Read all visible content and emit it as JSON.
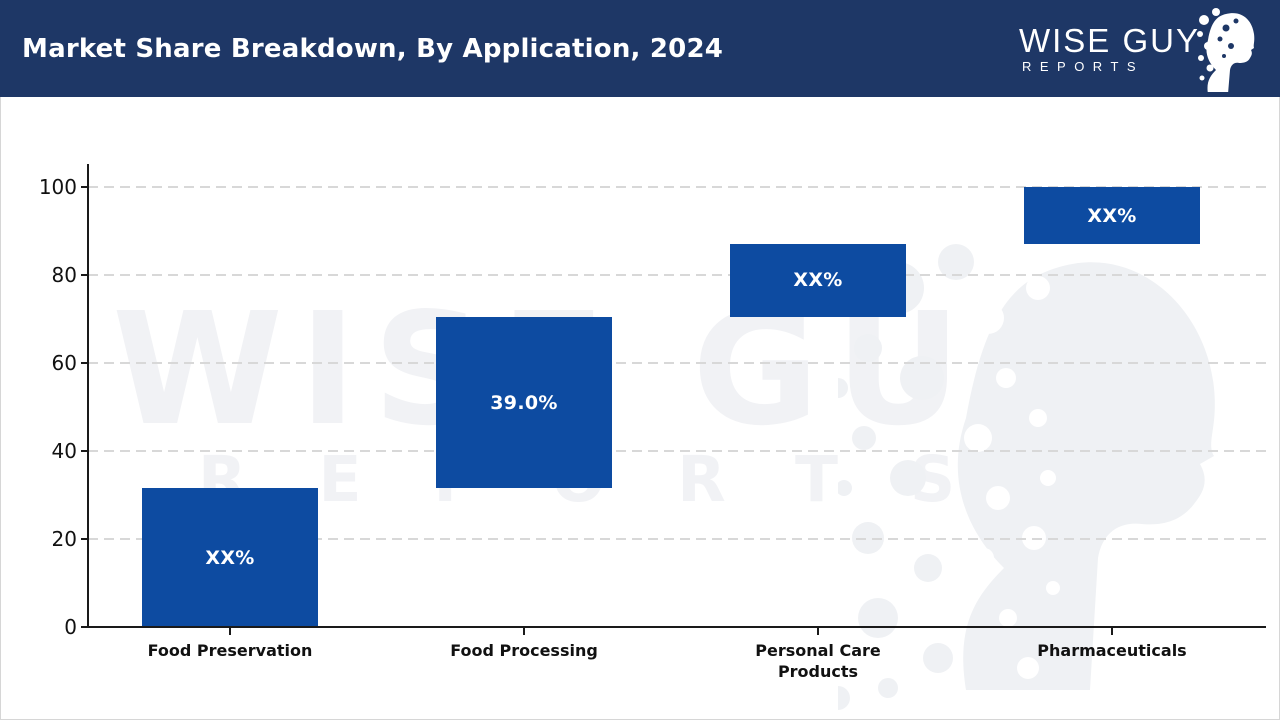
{
  "header": {
    "title": "Market Share Breakdown, By Application, 2024",
    "logo": {
      "line1": "WISE GUY",
      "line2": "REPORTS"
    }
  },
  "watermark": {
    "line1": "WISE GUY",
    "line2": "REPORTS"
  },
  "colors": {
    "header_bg": "#1e3766",
    "bar": "#0d4ba1",
    "grid": "#d8d8d8",
    "axis": "#1a1a1a",
    "bar_label_text": "#ffffff",
    "watermark": "#f1f2f5"
  },
  "chart_data": {
    "type": "bar",
    "subtype": "waterfall-floating-bars",
    "title": "Market Share Breakdown, By Application, 2024",
    "categories": [
      "Food Preservation",
      "Food Processing",
      "Personal Care Products",
      "Pharmaceuticals"
    ],
    "segments": [
      {
        "category": "Food Preservation",
        "start": 0,
        "end": 31.5,
        "label": "XX%"
      },
      {
        "category": "Food Processing",
        "start": 31.5,
        "end": 70.5,
        "label": "39.0%"
      },
      {
        "category": "Personal Care Products",
        "start": 70.5,
        "end": 87,
        "label": "XX%"
      },
      {
        "category": "Pharmaceuticals",
        "start": 87,
        "end": 100,
        "label": "XX%"
      }
    ],
    "xlabel": "",
    "ylabel": "",
    "ylim": [
      0,
      100
    ],
    "yticks": [
      0,
      20,
      40,
      60,
      80,
      100
    ],
    "grid": "horizontal-dashed",
    "legend": "none"
  }
}
